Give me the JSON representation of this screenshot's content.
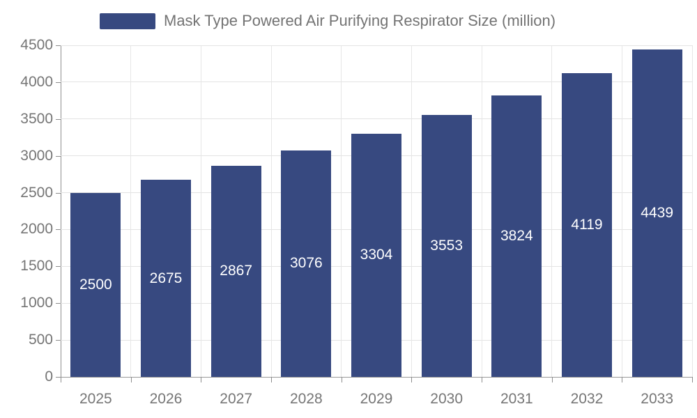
{
  "legend": {
    "label": "Mask Type Powered Air Purifying Respirator Size (million)",
    "swatch_color": "#374980"
  },
  "colors": {
    "bar": "#374980",
    "value_label": "#ffffff",
    "axis_text": "#757575",
    "legend_text": "#737373",
    "gridline": "#e3e3e3",
    "axis_line": "#8c8c8c"
  },
  "chart_data": {
    "type": "bar",
    "title": "",
    "categories": [
      "2025",
      "2026",
      "2027",
      "2028",
      "2029",
      "2030",
      "2031",
      "2032",
      "2033"
    ],
    "series": [
      {
        "name": "Mask Type Powered Air Purifying Respirator Size (million)",
        "values": [
          2500,
          2675,
          2867,
          3076,
          3304,
          3553,
          3824,
          4119,
          4439
        ]
      }
    ],
    "value_labels": [
      "2500",
      "2675",
      "2867",
      "3076",
      "3304",
      "3553",
      "3824",
      "4119",
      "4439"
    ],
    "xlabel": "",
    "ylabel": "",
    "ylim": [
      0,
      4500
    ],
    "yticks": [
      0,
      500,
      1000,
      1500,
      2000,
      2500,
      3000,
      3500,
      4000,
      4500
    ],
    "grid": true,
    "legend_position": "top",
    "bar_color": "#374980",
    "value_label_color": "#ffffff"
  }
}
